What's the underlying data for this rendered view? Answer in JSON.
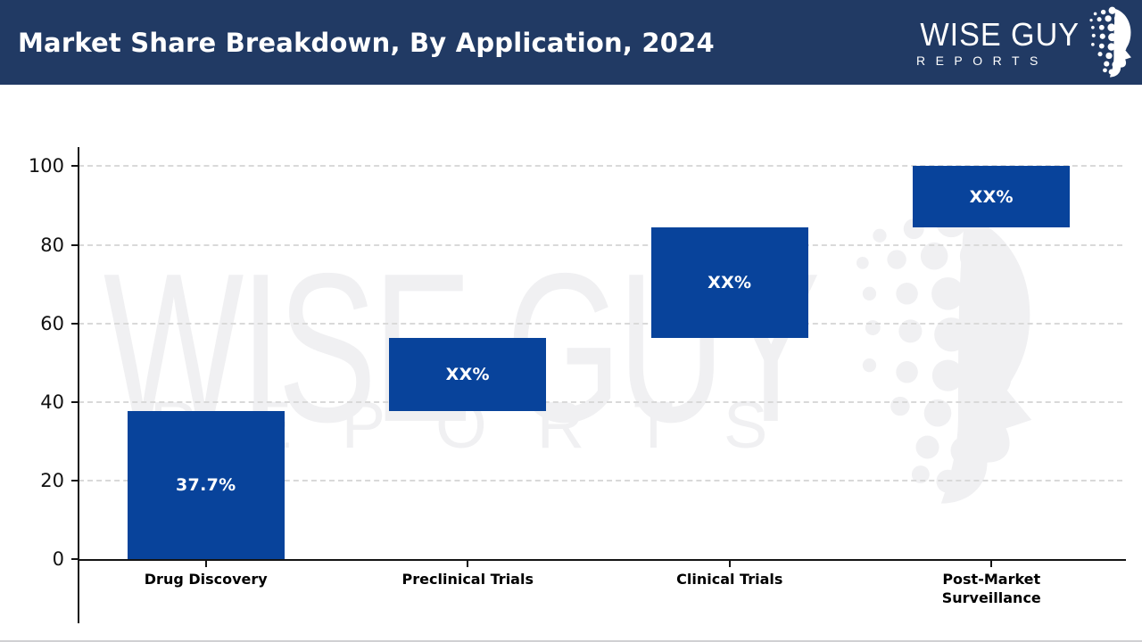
{
  "header": {
    "title": "Market Share Breakdown, By Application, 2024",
    "bg_color": "#213a64",
    "logo": {
      "line1": "WISE GUY",
      "line2": "REPORTS"
    }
  },
  "watermark": {
    "line1": "WISE GUY",
    "line2": "REPORTS"
  },
  "footer": {
    "divider_color": "#d0d0d3"
  },
  "chart_data": {
    "type": "bar",
    "subtype": "waterfall",
    "title": "Market Share Breakdown, By Application, 2024",
    "categories": [
      "Drug Discovery",
      "Preclinical Trials",
      "Clinical Trials",
      "Post-Market Surveillance"
    ],
    "tick_labels": [
      "Drug Discovery",
      "Preclinical Trials",
      "Clinical Trials",
      "Post-Market\nSurveillance"
    ],
    "series": [
      {
        "name": "Market Share (%)",
        "segments": [
          {
            "category": "Drug Discovery",
            "start": 0,
            "end": 37.7,
            "label": "37.7%"
          },
          {
            "category": "Preclinical Trials",
            "start": 37.7,
            "end": 56.3,
            "label": "XX%"
          },
          {
            "category": "Clinical Trials",
            "start": 56.3,
            "end": 84.5,
            "label": "XX%"
          },
          {
            "category": "Post-Market Surveillance",
            "start": 84.5,
            "end": 100,
            "label": "XX%"
          }
        ]
      }
    ],
    "xlabel": "",
    "ylabel": "",
    "ylim": [
      0,
      100
    ],
    "yticks": [
      0,
      20,
      40,
      60,
      80,
      100
    ],
    "grid": "horizontal dashed",
    "gridline_color": "#d9d9d9",
    "bar_color": "#08439b",
    "bar_label_color": "#ffffff",
    "legend": "none"
  }
}
